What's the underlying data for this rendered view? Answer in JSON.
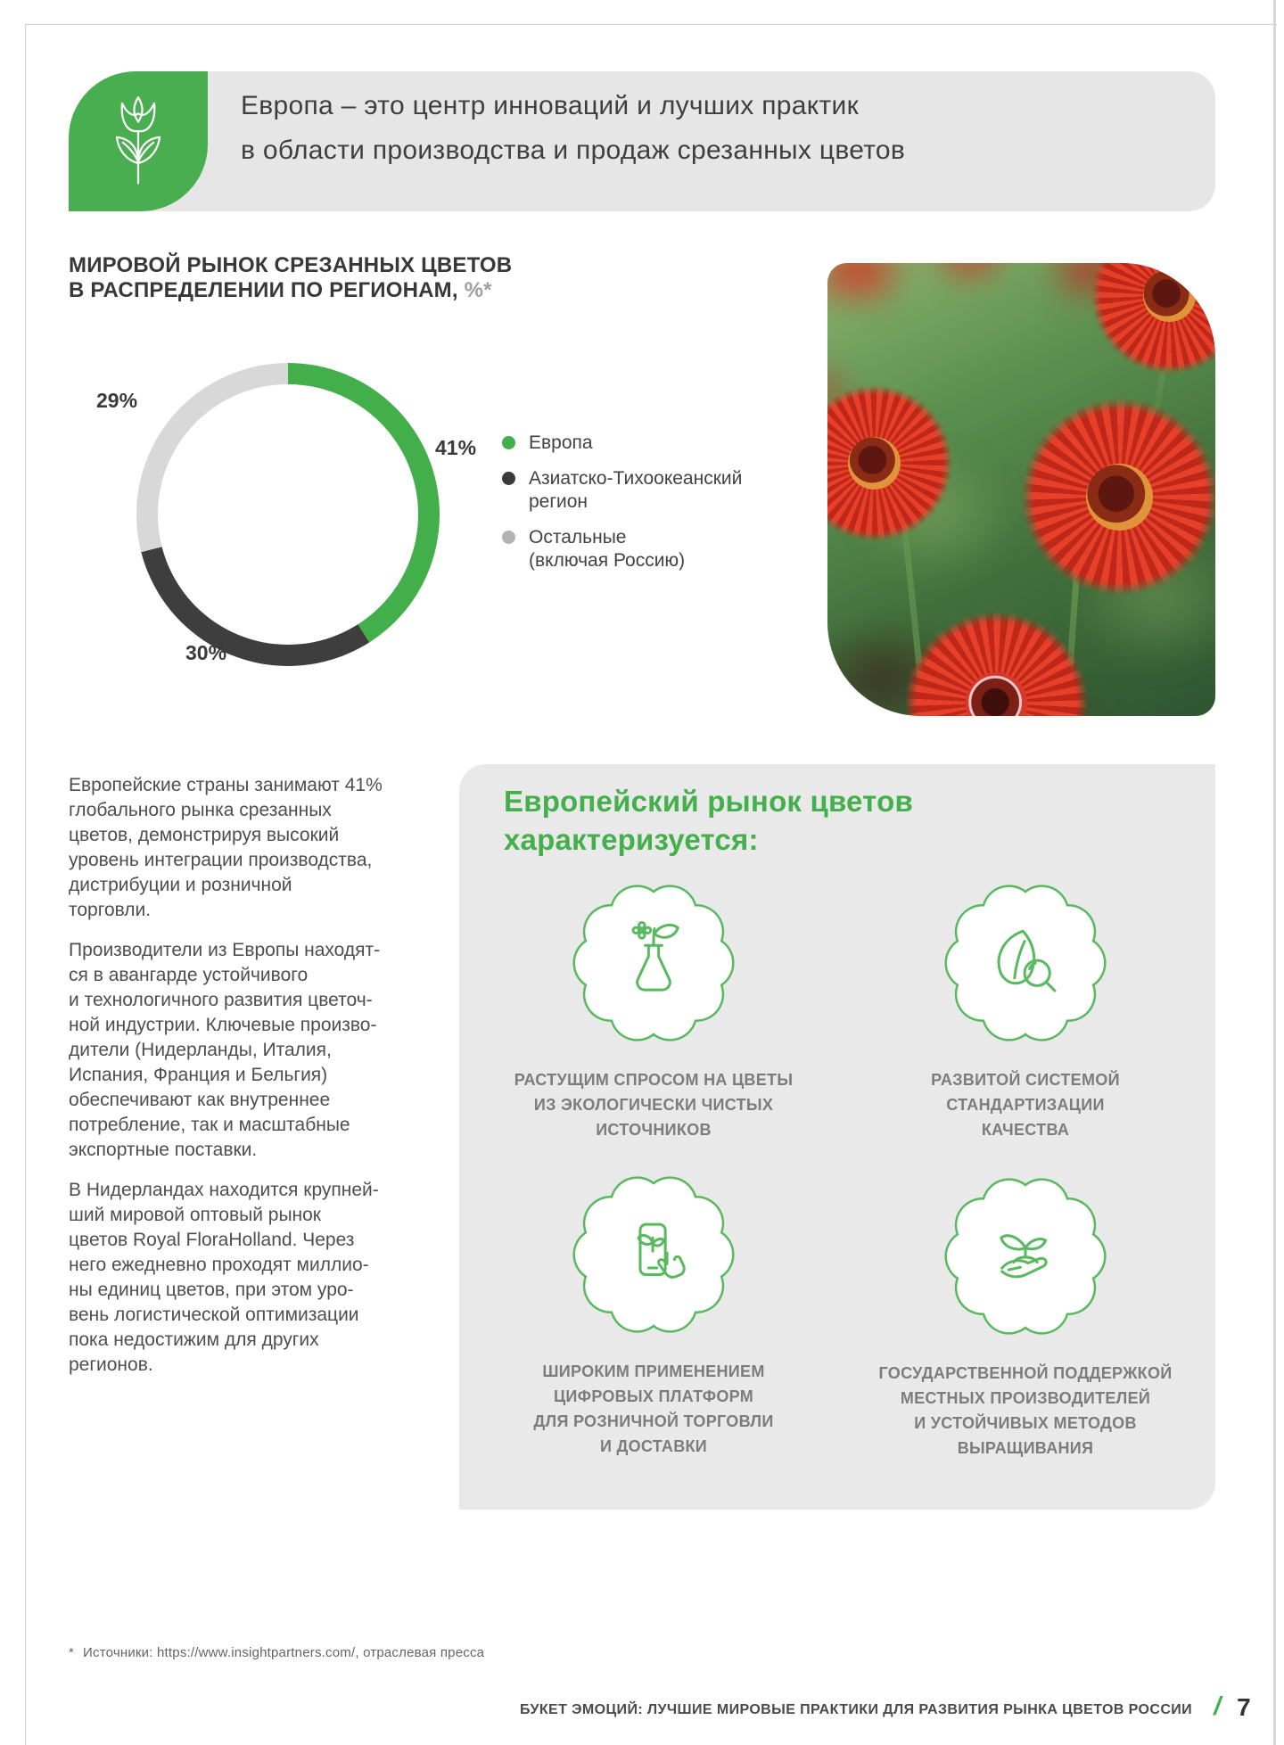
{
  "header": {
    "title_line1": "Европа – это центр инноваций и лучших практик",
    "title_line2": "в области производства и продаж срезанных цветов",
    "logo_icon": "tulip-icon"
  },
  "chart": {
    "title_line1": "МИРОВОЙ РЫНОК СРЕЗАННЫХ ЦВЕТОВ",
    "title_line2": "В РАСПРЕДЕЛЕНИИ ПО РЕГИОНАМ,",
    "title_unit": "%*"
  },
  "chart_data": {
    "type": "pie",
    "donut": true,
    "title": "Мировой рынок срезанных цветов в распределении по регионам, %",
    "labels": [
      "Европа",
      "Азиатско-Тихоокеанский регион",
      "Остальные (включая Россию)"
    ],
    "values": [
      41,
      30,
      29
    ],
    "value_labels": [
      "41%",
      "30%",
      "29%"
    ],
    "colors": [
      "#43af4b",
      "#3e3e3e",
      "#d8d8d8"
    ],
    "start_angle": "top",
    "direction": "clockwise",
    "legend_position": "right"
  },
  "legend": {
    "items": [
      {
        "color": "#43af4b",
        "lines": [
          "Европа"
        ]
      },
      {
        "color": "#3a3a3a",
        "lines": [
          "Азиатско-Тихоокеанский",
          "регион"
        ]
      },
      {
        "color": "#b3b3b3",
        "lines": [
          "Остальные",
          "(включая Россию)"
        ]
      }
    ]
  },
  "photo": {
    "description": "red-gerbera-flowers-photo"
  },
  "body": {
    "paragraphs": [
      {
        "lines": [
          "Европейские страны занимают 41%",
          "глобального рынка срезанных",
          "цветов, демонстрируя высокий",
          "уровень интеграции производства,",
          "дистрибуции и розничной",
          "торговли."
        ]
      },
      {
        "lines": [
          "Производители из Европы находят-",
          "ся в авангарде устойчивого",
          "и технологичного развития цветоч-",
          "ной индустрии. Ключевые произво-",
          "дители (Нидерланды, Италия,",
          "Испания, Франция и Бельгия)",
          "обеспечивают как внутреннее",
          "потребление, так и масштабные",
          "экспортные поставки."
        ]
      },
      {
        "lines": [
          "В Нидерландах находится крупней-",
          "ший мировой оптовый рынок",
          "цветов Royal FloraHolland. Через",
          "него ежедневно проходят миллио-",
          "ны единиц цветов, при этом уро-",
          "вень логистической оптимизации",
          "пока недостижим для других",
          "регионов."
        ]
      }
    ]
  },
  "panel": {
    "heading_line1": "Европейский рынок цветов",
    "heading_line2": "характеризуется:",
    "features": [
      {
        "icon": "eco-flask-icon",
        "caption_lines": [
          "РАСТУЩИМ СПРОСОМ НА ЦВЕТЫ",
          "ИЗ ЭКОЛОГИЧЕСКИ ЧИСТЫХ",
          "ИСТОЧНИКОВ"
        ]
      },
      {
        "icon": "leaf-magnifier-icon",
        "caption_lines": [
          "РАЗВИТОЙ СИСТЕМОЙ",
          "СТАНДАРТИЗАЦИИ",
          "КАЧЕСТВА"
        ]
      },
      {
        "icon": "phone-tap-icon",
        "caption_lines": [
          "ШИРОКИМ ПРИМЕНЕНИЕМ",
          "ЦИФРОВЫХ ПЛАТФОРМ",
          "ДЛЯ РОЗНИЧНОЙ ТОРГОВЛИ",
          "И ДОСТАВКИ"
        ]
      },
      {
        "icon": "hand-sprout-icon",
        "caption_lines": [
          "ГОСУДАРСТВЕННОЙ ПОДДЕРЖКОЙ",
          "МЕСТНЫХ ПРОИЗВОДИТЕЛЕЙ",
          "И УСТОЙЧИВЫХ МЕТОДОВ",
          "ВЫРАЩИВАНИЯ"
        ]
      }
    ]
  },
  "footnote": {
    "marker": "*",
    "text_prefix": "Источники: ",
    "url": "https://www.insightpartners.com/",
    "text_suffix": ", отраслевая пресса"
  },
  "footer": {
    "text": "БУКЕТ ЭМОЦИЙ: ЛУЧШИЕ МИРОВЫЕ ПРАКТИКИ ДЛЯ РАЗВИТИЯ РЫНКА ЦВЕТОВ РОССИИ",
    "divider": "/",
    "page_number": "7"
  },
  "colors": {
    "accent_green": "#48ae4f",
    "heading_green": "#44b04c",
    "icon_stroke_green": "#58b95f",
    "dark_segment": "#3e3e3e",
    "light_segment": "#d8d8d8",
    "panel_gray": "#e9e9e9",
    "banner_gray": "#e6e6e6"
  }
}
